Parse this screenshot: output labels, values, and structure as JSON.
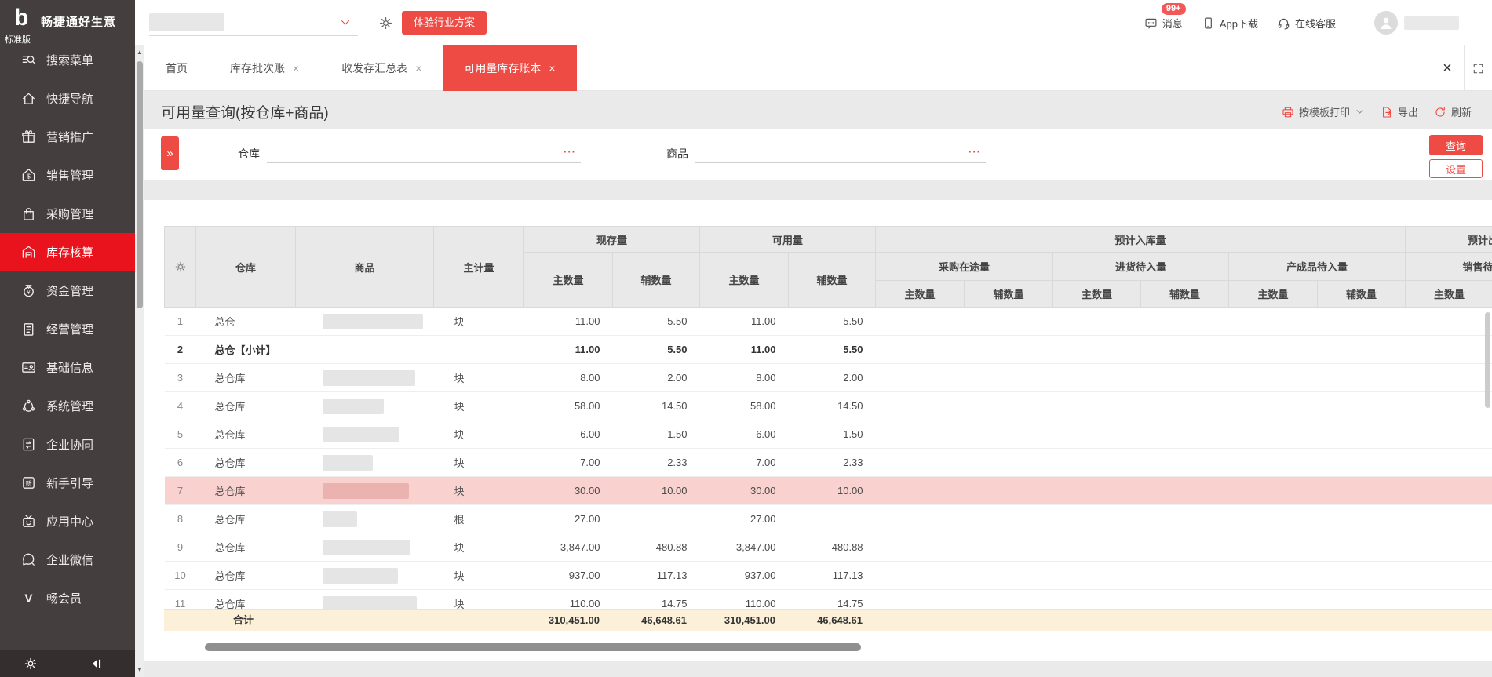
{
  "app": {
    "name": "畅捷通好生意",
    "edition": "标准版",
    "logo_letter": "b"
  },
  "topbar": {
    "trial_button": "体验行业方案",
    "messages_label": "消息",
    "messages_badge": "99+",
    "app_download_label": "App下载",
    "support_label": "在线客服",
    "icons": [
      "chevron-down-icon",
      "gear-icon",
      "message-icon",
      "phone-icon",
      "headset-icon",
      "avatar-icon"
    ]
  },
  "sidebar": {
    "items": [
      {
        "key": "search-menu",
        "icon": "search-menu",
        "label": "搜索菜单",
        "active": false
      },
      {
        "key": "quick-nav",
        "icon": "home",
        "label": "快捷导航",
        "active": false
      },
      {
        "key": "marketing",
        "icon": "gift",
        "label": "营销推广",
        "active": false
      },
      {
        "key": "sales",
        "icon": "sales",
        "label": "销售管理",
        "active": false
      },
      {
        "key": "purchase",
        "icon": "purchase",
        "label": "采购管理",
        "active": false
      },
      {
        "key": "inventory",
        "icon": "inventory",
        "label": "库存核算",
        "active": true
      },
      {
        "key": "funds",
        "icon": "funds",
        "label": "资金管理",
        "active": false
      },
      {
        "key": "operations",
        "icon": "operations",
        "label": "经营管理",
        "active": false
      },
      {
        "key": "base-info",
        "icon": "base-info",
        "label": "基础信息",
        "active": false
      },
      {
        "key": "system",
        "icon": "system",
        "label": "系统管理",
        "active": false
      },
      {
        "key": "collaboration",
        "icon": "collab",
        "label": "企业协同",
        "active": false
      },
      {
        "key": "newbie-guide",
        "icon": "newbie",
        "label": "新手引导",
        "active": false
      },
      {
        "key": "app-center",
        "icon": "app-center",
        "label": "应用中心",
        "active": false
      },
      {
        "key": "wechat-work",
        "icon": "wechat",
        "label": "企业微信",
        "active": false
      },
      {
        "key": "member",
        "icon": "member",
        "label": "畅会员",
        "active": false
      }
    ]
  },
  "tabs": [
    {
      "label": "首页",
      "closable": false,
      "active": false
    },
    {
      "label": "库存批次账",
      "closable": true,
      "active": false
    },
    {
      "label": "收发存汇总表",
      "closable": true,
      "active": false
    },
    {
      "label": "可用量库存账本",
      "closable": true,
      "active": true
    }
  ],
  "page": {
    "title": "可用量查询(按仓库+商品)",
    "print_label": "按模板打印",
    "export_label": "导出",
    "refresh_label": "刷新"
  },
  "filters": {
    "warehouse_label": "仓库",
    "product_label": "商品",
    "query_button": "查询",
    "settings_button": "设置"
  },
  "table": {
    "header": {
      "warehouse": "仓库",
      "product": "商品",
      "base_unit": "主计量",
      "onhand": "现存量",
      "available": "可用量",
      "expected_in": "预计入库量",
      "expected_out": "预计出库量",
      "purchase_transit": "采购在途量",
      "purchase_incoming": "进货待入量",
      "finished_goods_pending": "产成品待入量",
      "sales_pending": "销售待发货量",
      "main_qty": "主数量",
      "aux_qty": "辅数量"
    },
    "rows": [
      {
        "num": "1",
        "warehouse": "总仓",
        "unit": "块",
        "onhand_main": "11.00",
        "onhand_aux": "5.50",
        "avail_main": "11.00",
        "avail_aux": "5.50",
        "redact_w": 128,
        "subtotal": false,
        "highlight": false
      },
      {
        "num": "2",
        "warehouse": "总仓【小计】",
        "unit": "",
        "onhand_main": "11.00",
        "onhand_aux": "5.50",
        "avail_main": "11.00",
        "avail_aux": "5.50",
        "redact_w": 0,
        "subtotal": true,
        "highlight": false
      },
      {
        "num": "3",
        "warehouse": "总仓库",
        "unit": "块",
        "onhand_main": "8.00",
        "onhand_aux": "2.00",
        "avail_main": "8.00",
        "avail_aux": "2.00",
        "redact_w": 118,
        "subtotal": false,
        "highlight": false
      },
      {
        "num": "4",
        "warehouse": "总仓库",
        "unit": "块",
        "onhand_main": "58.00",
        "onhand_aux": "14.50",
        "avail_main": "58.00",
        "avail_aux": "14.50",
        "redact_w": 78,
        "subtotal": false,
        "highlight": false
      },
      {
        "num": "5",
        "warehouse": "总仓库",
        "unit": "块",
        "onhand_main": "6.00",
        "onhand_aux": "1.50",
        "avail_main": "6.00",
        "avail_aux": "1.50",
        "redact_w": 98,
        "subtotal": false,
        "highlight": false
      },
      {
        "num": "6",
        "warehouse": "总仓库",
        "unit": "块",
        "onhand_main": "7.00",
        "onhand_aux": "2.33",
        "avail_main": "7.00",
        "avail_aux": "2.33",
        "redact_w": 64,
        "subtotal": false,
        "highlight": false
      },
      {
        "num": "7",
        "warehouse": "总仓库",
        "unit": "块",
        "onhand_main": "30.00",
        "onhand_aux": "10.00",
        "avail_main": "30.00",
        "avail_aux": "10.00",
        "redact_w": 110,
        "subtotal": false,
        "highlight": true
      },
      {
        "num": "8",
        "warehouse": "总仓库",
        "unit": "根",
        "onhand_main": "27.00",
        "onhand_aux": "",
        "avail_main": "27.00",
        "avail_aux": "",
        "redact_w": 44,
        "subtotal": false,
        "highlight": false
      },
      {
        "num": "9",
        "warehouse": "总仓库",
        "unit": "块",
        "onhand_main": "3,847.00",
        "onhand_aux": "480.88",
        "avail_main": "3,847.00",
        "avail_aux": "480.88",
        "redact_w": 112,
        "subtotal": false,
        "highlight": false
      },
      {
        "num": "10",
        "warehouse": "总仓库",
        "unit": "块",
        "onhand_main": "937.00",
        "onhand_aux": "117.13",
        "avail_main": "937.00",
        "avail_aux": "117.13",
        "redact_w": 96,
        "subtotal": false,
        "highlight": false
      },
      {
        "num": "11",
        "warehouse": "总仓库",
        "unit": "块",
        "onhand_main": "110.00",
        "onhand_aux": "14.75",
        "avail_main": "110.00",
        "avail_aux": "14.75",
        "redact_w": 120,
        "subtotal": false,
        "highlight": false
      }
    ],
    "total": {
      "label": "合计",
      "onhand_main": "310,451.00",
      "onhand_aux": "46,648.61",
      "avail_main": "310,451.00",
      "avail_aux": "46,648.61"
    }
  }
}
